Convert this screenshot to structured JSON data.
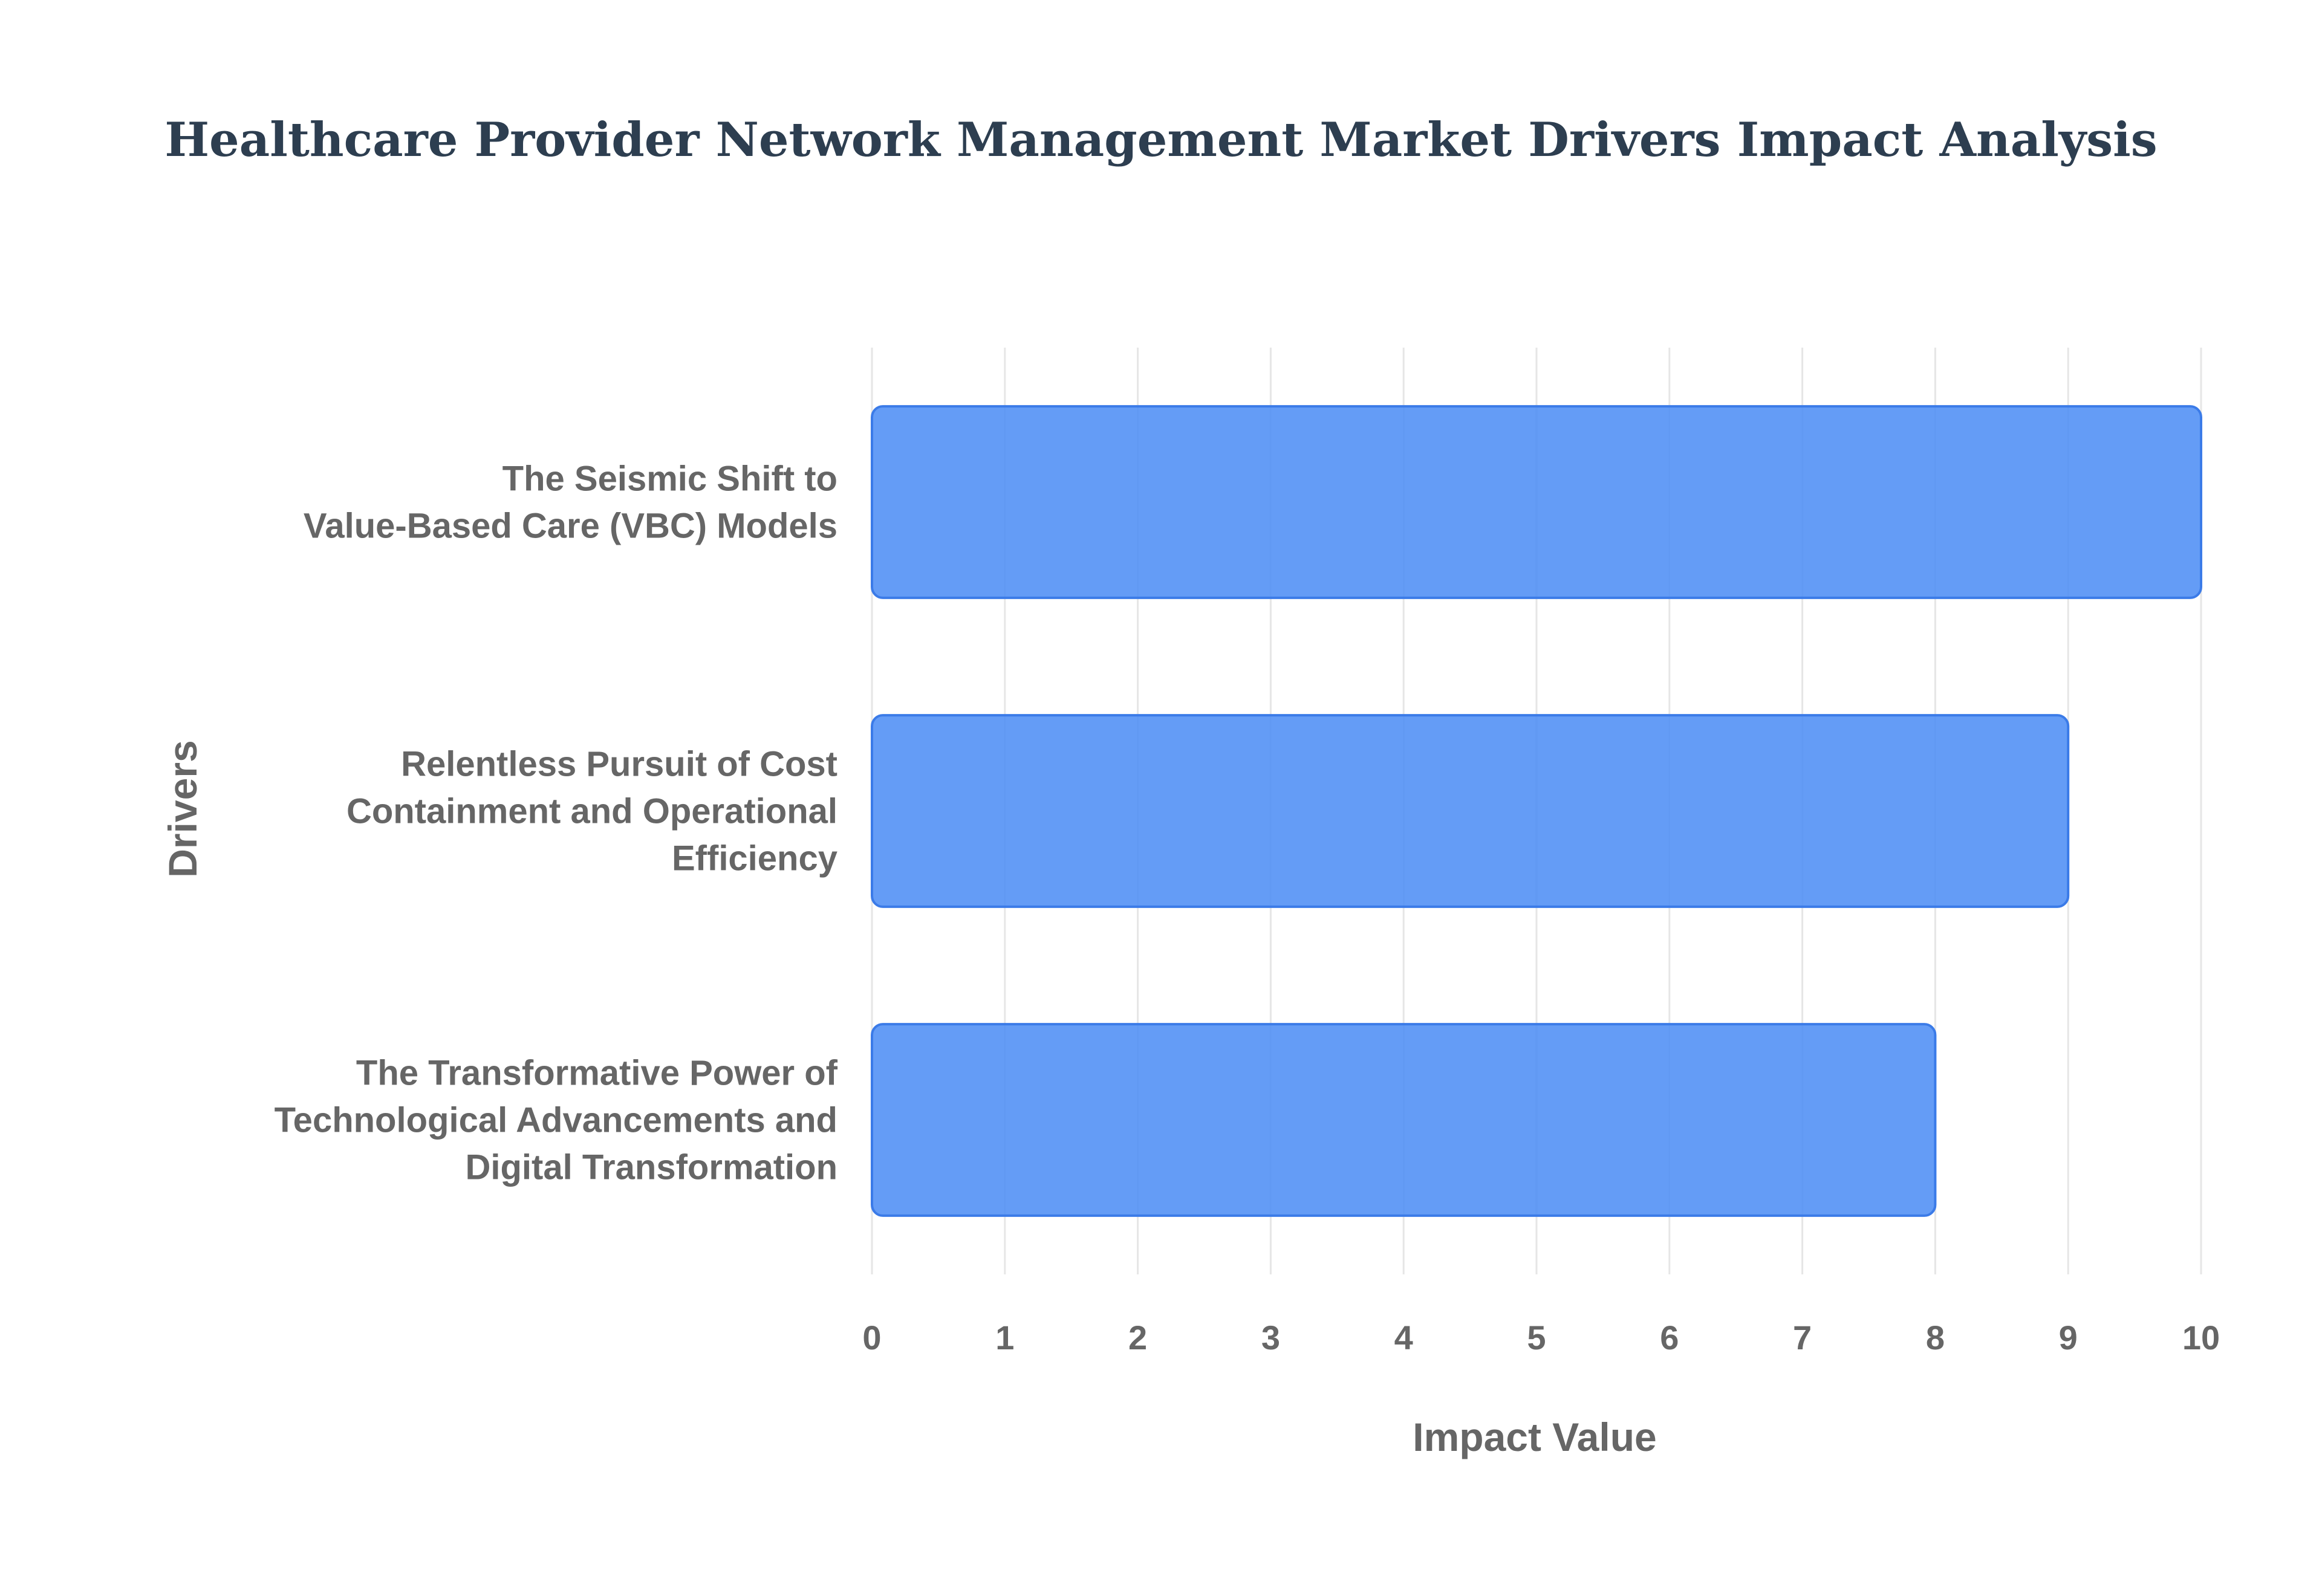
{
  "chart_data": {
    "type": "bar",
    "orientation": "horizontal",
    "title": "Healthcare Provider Network Management Market Drivers Impact Analysis",
    "xlabel": "Impact Value",
    "ylabel": "Drivers",
    "xlim": [
      0,
      10
    ],
    "xticks": [
      "0",
      "1",
      "2",
      "3",
      "4",
      "5",
      "6",
      "7",
      "8",
      "9",
      "10"
    ],
    "grid": true,
    "legend": "none",
    "bar_color": "#4f8ef5",
    "categories": [
      {
        "label": "The Seismic Shift to Value-Based Care (VBC) Models",
        "lines": [
          "The Seismic Shift to",
          "Value-Based Care (VBC) Models"
        ]
      },
      {
        "label": "Relentless Pursuit of Cost Containment and Operational Efficiency",
        "lines": [
          "Relentless Pursuit of Cost",
          "Containment and Operational",
          "Efficiency"
        ]
      },
      {
        "label": "The Transformative Power of Technological Advancements and Digital Transformation",
        "lines": [
          "The Transformative Power of",
          "Technological Advancements and",
          "Digital Transformation"
        ]
      }
    ],
    "values": [
      10,
      9,
      8
    ]
  }
}
